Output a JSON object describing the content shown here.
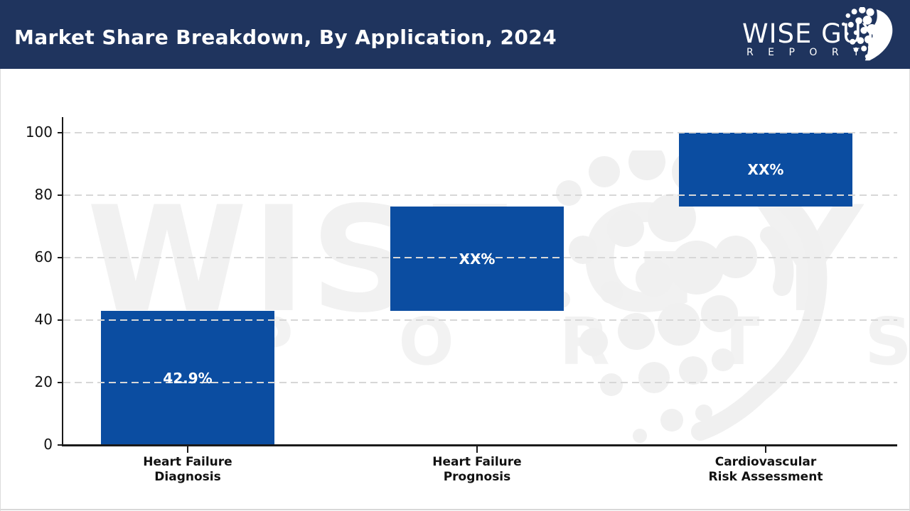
{
  "header": {
    "title": "Market Share Breakdown, By Application, 2024",
    "logo": {
      "name": "WISE GUY",
      "subtitle": "R E P O R T S"
    }
  },
  "watermark": {
    "row1": "WISE G Y",
    "row2": "P O R T S"
  },
  "chart_data": {
    "type": "bar",
    "variant": "stacked-waterfall-percentage",
    "title": "Market Share Breakdown, By Application, 2024",
    "xlabel": "",
    "ylabel": "",
    "ylim": [
      0,
      105
    ],
    "y_ticks": [
      0,
      20,
      40,
      60,
      80,
      100
    ],
    "grid": "horizontal-dashed",
    "legend": "none",
    "bar_color": "#0b4da1",
    "categories": [
      "Heart Failure Diagnosis",
      "Heart Failure Prognosis",
      "Cardiovascular Risk Assessment"
    ],
    "category_label_lines": [
      [
        "Heart Failure",
        "Diagnosis"
      ],
      [
        "Heart Failure",
        "Prognosis"
      ],
      [
        "Cardiovascular",
        "Risk Assessment"
      ]
    ],
    "segments": [
      {
        "category": "Heart Failure Diagnosis",
        "start": 0,
        "end": 42.9,
        "label": "42.9%"
      },
      {
        "category": "Heart Failure Prognosis",
        "start": 42.9,
        "end": 76.4,
        "label": "XX%"
      },
      {
        "category": "Cardiovascular Risk Assessment",
        "start": 76.4,
        "end": 100,
        "label": "XX%"
      }
    ]
  },
  "colors": {
    "header_bg": "#1f345e",
    "bar": "#0b4da1",
    "grid": "#d7d7d7",
    "axis": "#1a1a1a",
    "watermark": "#f1f1f1"
  }
}
